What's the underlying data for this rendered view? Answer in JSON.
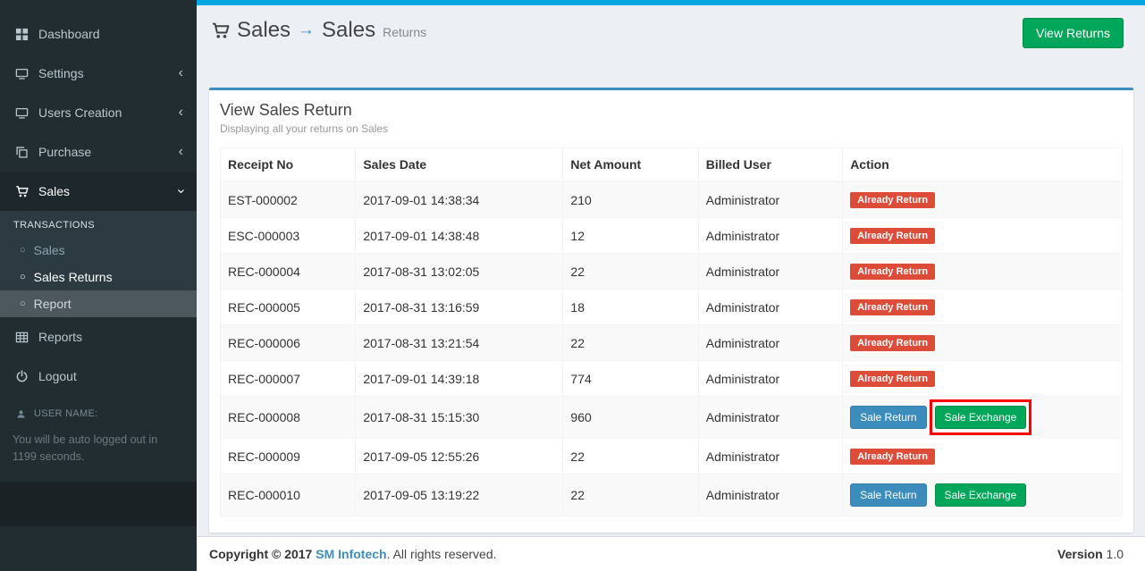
{
  "sidebar": {
    "items": [
      {
        "label": "Dashboard",
        "icon": "dashboard-icon"
      },
      {
        "label": "Settings",
        "icon": "monitor-icon",
        "chevron": "left"
      },
      {
        "label": "Users Creation",
        "icon": "monitor-icon",
        "chevron": "left"
      },
      {
        "label": "Purchase",
        "icon": "copy-icon",
        "chevron": "left"
      },
      {
        "label": "Sales",
        "icon": "cart-icon",
        "chevron": "down",
        "active": true
      }
    ],
    "section_label": "TRANSACTIONS",
    "sub_items": [
      {
        "label": "Sales",
        "active": false
      },
      {
        "label": "Sales Returns",
        "active": true
      },
      {
        "label": "Report",
        "active": false
      }
    ],
    "reports": {
      "label": "Reports",
      "icon": "table-icon"
    },
    "logout": {
      "label": "Logout",
      "icon": "power-icon"
    },
    "user_panel": {
      "user_label": "USER NAME:",
      "logout_notice": "You will be auto logged out in 1199 seconds."
    }
  },
  "icons": {
    "chevron_left": "‹",
    "chevron_down": "‹",
    "circle": "○",
    "breadcrumb_arrow": "→"
  },
  "header": {
    "crumb_primary": "Sales",
    "crumb_secondary": "Sales",
    "crumb_suffix": "Returns",
    "view_returns_button": "View Returns"
  },
  "card": {
    "title": "View Sales Return",
    "subtitle": "Displaying all your returns on Sales"
  },
  "table": {
    "columns": [
      "Receipt No",
      "Sales Date",
      "Net Amount",
      "Billed User",
      "Action"
    ],
    "action_labels": {
      "already_return": "Already Return",
      "sale_return": "Sale Return",
      "sale_exchange": "Sale Exchange"
    },
    "rows": [
      {
        "receipt": "EST-000002",
        "date": "2017-09-01 14:38:34",
        "amount": "210",
        "user": "Administrator",
        "actions": [
          "already_return"
        ],
        "highlight_exchange": false
      },
      {
        "receipt": "ESC-000003",
        "date": "2017-09-01 14:38:48",
        "amount": "12",
        "user": "Administrator",
        "actions": [
          "already_return"
        ],
        "highlight_exchange": false
      },
      {
        "receipt": "REC-000004",
        "date": "2017-08-31 13:02:05",
        "amount": "22",
        "user": "Administrator",
        "actions": [
          "already_return"
        ],
        "highlight_exchange": false
      },
      {
        "receipt": "REC-000005",
        "date": "2017-08-31 13:16:59",
        "amount": "18",
        "user": "Administrator",
        "actions": [
          "already_return"
        ],
        "highlight_exchange": false
      },
      {
        "receipt": "REC-000006",
        "date": "2017-08-31 13:21:54",
        "amount": "22",
        "user": "Administrator",
        "actions": [
          "already_return"
        ],
        "highlight_exchange": false
      },
      {
        "receipt": "REC-000007",
        "date": "2017-09-01 14:39:18",
        "amount": "774",
        "user": "Administrator",
        "actions": [
          "already_return"
        ],
        "highlight_exchange": false
      },
      {
        "receipt": "REC-000008",
        "date": "2017-08-31 15:15:30",
        "amount": "960",
        "user": "Administrator",
        "actions": [
          "sale_return",
          "sale_exchange"
        ],
        "highlight_exchange": true
      },
      {
        "receipt": "REC-000009",
        "date": "2017-09-05 12:55:26",
        "amount": "22",
        "user": "Administrator",
        "actions": [
          "already_return"
        ],
        "highlight_exchange": false
      },
      {
        "receipt": "REC-000010",
        "date": "2017-09-05 13:19:22",
        "amount": "22",
        "user": "Administrator",
        "actions": [
          "sale_return",
          "sale_exchange"
        ],
        "highlight_exchange": false
      }
    ]
  },
  "footer": {
    "copyright_prefix": "Copyright © 2017",
    "company": "SM Infotech",
    "copyright_suffix": ". All rights reserved.",
    "version_label": "Version",
    "version_value": "1.0"
  },
  "colors": {
    "accent_blue": "#3c8dbc",
    "success_green": "#00a65a",
    "danger_red": "#dd4b39",
    "annotation_red": "#ff0000",
    "sidebar_dark": "#222d32"
  }
}
